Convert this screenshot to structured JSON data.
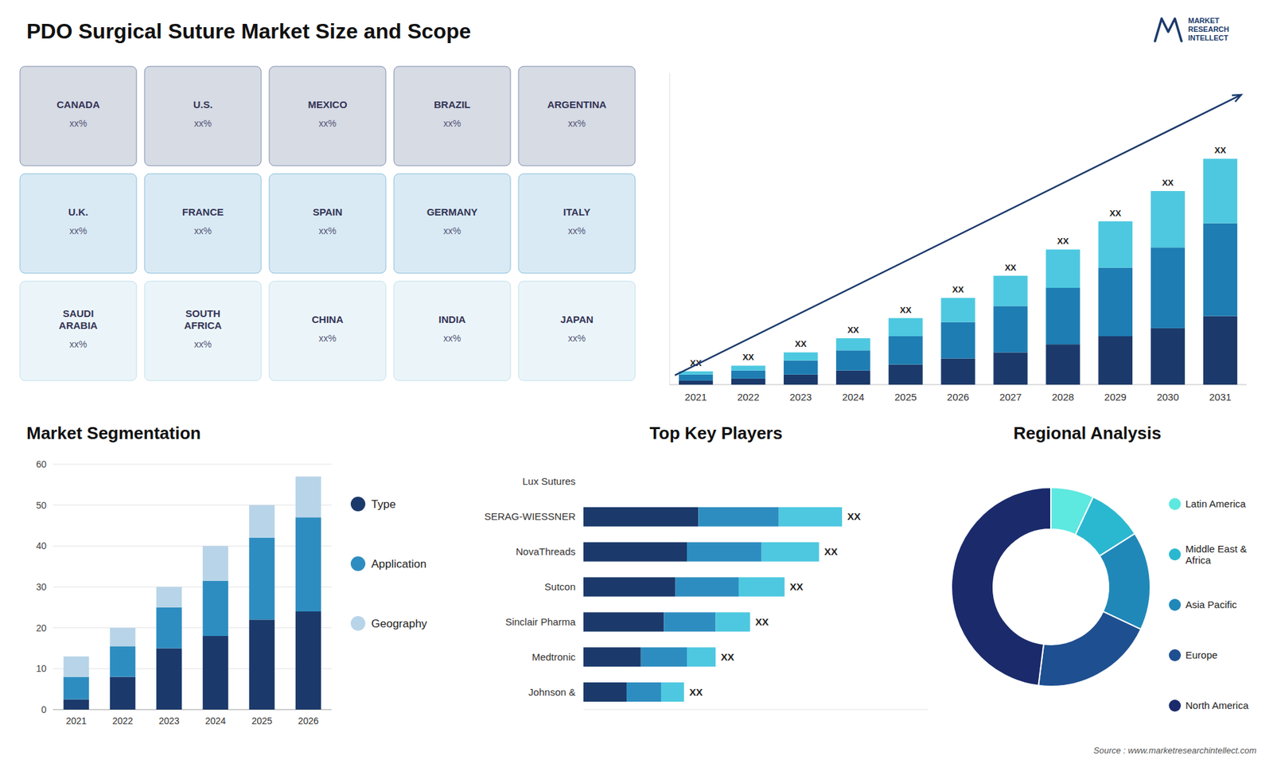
{
  "chart_data": [
    {
      "type": "bar",
      "stacked": true,
      "title": "PDO Surgical Suture Market Size and Scope",
      "categories": [
        "2021",
        "2022",
        "2023",
        "2024",
        "2025",
        "2026",
        "2027",
        "2028",
        "2029",
        "2030",
        "2031"
      ],
      "series": [
        {
          "color": "#1b3a6b",
          "values": [
            1.0,
            1.5,
            2.5,
            3.5,
            5.0,
            6.5,
            8.0,
            10.0,
            12.0,
            14.0,
            17.0
          ]
        },
        {
          "color": "#1e7db3",
          "values": [
            1.5,
            2.0,
            3.5,
            5.0,
            7.0,
            9.0,
            11.5,
            14.0,
            17.0,
            20.0,
            23.0
          ]
        },
        {
          "color": "#4dc8e0",
          "values": [
            0.8,
            1.2,
            2.0,
            3.0,
            4.5,
            6.0,
            7.5,
            9.5,
            11.5,
            14.0,
            16.0
          ]
        }
      ],
      "ylim": [
        0,
        77.28
      ],
      "tick_labels": "x",
      "annotations": [
        "XX",
        "XX",
        "XX",
        "XX",
        "XX",
        "XX",
        "XX",
        "XX",
        "XX",
        "XX",
        "XX",
        "Source : www.marketresearchintellect.com",
        "MARKET",
        "RESEARCH",
        "INTELLECT"
      ]
    },
    {
      "type": "bar",
      "stacked": true,
      "title": "Market Segmentation",
      "categories": [
        "2021",
        "2022",
        "2023",
        "2024",
        "2025",
        "2026"
      ],
      "series": [
        {
          "name": "Type",
          "color": "#1b3a6b",
          "values": [
            2.5,
            8.0,
            15.0,
            18.0,
            22.0,
            24.0
          ]
        },
        {
          "name": "Application",
          "color": "#2e8dc0",
          "values": [
            5.5,
            7.5,
            10.0,
            13.5,
            20.0,
            23.0
          ]
        },
        {
          "name": "Geography",
          "color": "#b8d4e8",
          "values": [
            5.0,
            4.5,
            5.0,
            8.5,
            8.0,
            10.0
          ]
        }
      ],
      "ylim": [
        0,
        60
      ],
      "yticks": [
        0,
        10,
        20,
        30,
        40,
        50,
        60
      ],
      "grid": true,
      "legend": "right"
    },
    {
      "type": "bar",
      "orientation": "horizontal",
      "stacked": true,
      "title": "Top Key Players",
      "categories": [
        "Lux Sutures",
        "SERAG-WIESSNER",
        "NovaThreads",
        "Sutcon",
        "Sinclair Pharma",
        "Medtronic",
        "Johnson &"
      ],
      "series": [
        {
          "color": "#1b3a6b",
          "values": [
            null,
            4.0,
            3.6,
            3.2,
            2.8,
            2.0,
            1.5
          ]
        },
        {
          "color": "#2e8dc0",
          "values": [
            null,
            2.8,
            2.6,
            2.2,
            1.8,
            1.6,
            1.2
          ]
        },
        {
          "color": "#4dc8e0",
          "values": [
            null,
            2.2,
            2.0,
            1.6,
            1.2,
            1.0,
            0.8
          ]
        }
      ],
      "xlim": [
        0,
        12
      ],
      "tick_labels": "y",
      "annotations": [
        "XX",
        "XX",
        "XX",
        "XX",
        "XX",
        "XX"
      ]
    },
    {
      "type": "pie",
      "title": "Regional Analysis",
      "categories": [
        "Latin America",
        "Middle East &\nAfrica",
        "Asia Pacific",
        "Europe",
        "North America"
      ],
      "values": [
        7,
        9,
        16,
        20,
        48
      ],
      "colors": [
        "#5de8e0",
        "#2ab8d0",
        "#2088b8",
        "#1e4f90",
        "#1a2a6b"
      ],
      "legend": "right"
    },
    {
      "type": "map",
      "categories": [
        "CANADA",
        "U.S.",
        "MEXICO",
        "BRAZIL",
        "ARGENTINA",
        "U.K.",
        "FRANCE",
        "SPAIN",
        "GERMANY",
        "ITALY",
        "SAUDI\nARABIA",
        "SOUTH\nAFRICA",
        "CHINA",
        "INDIA",
        "JAPAN"
      ],
      "annotations": [
        "xx%",
        "xx%",
        "xx%",
        "xx%",
        "xx%",
        "xx%",
        "xx%",
        "xx%",
        "xx%",
        "xx%",
        "xx%",
        "xx%",
        "xx%",
        "xx%",
        "xx%"
      ]
    }
  ]
}
